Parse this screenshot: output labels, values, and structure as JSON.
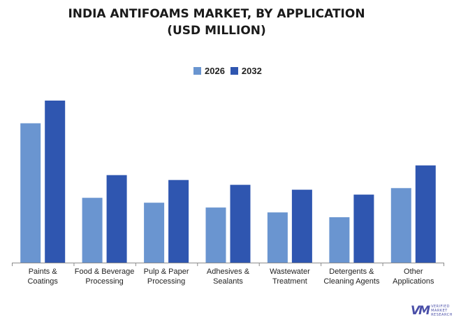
{
  "chart_data": {
    "type": "bar",
    "title_line1": "INDIA ANTIFOAMS MARKET, BY APPLICATION",
    "title_line2": "(USD MILLION)",
    "xlabel": "",
    "ylabel": "",
    "legend_placement": "top-center",
    "grid": false,
    "y_axis_visible": false,
    "ylim": [
      0,
      100
    ],
    "categories": [
      [
        "Paints &",
        "Coatings"
      ],
      [
        "Food & Beverage",
        "Processing"
      ],
      [
        "Pulp & Paper",
        "Processing"
      ],
      [
        "Adhesives &",
        "Sealants"
      ],
      [
        "Wastewater",
        "Treatment"
      ],
      [
        "Detergents &",
        "Cleaning Agents"
      ],
      [
        "Other",
        "Applications"
      ]
    ],
    "series": [
      {
        "name": "2026",
        "color": "#6a95d0",
        "values": [
          86,
          40,
          37,
          34,
          31,
          28,
          46
        ]
      },
      {
        "name": "2032",
        "color": "#2f56b0",
        "values": [
          100,
          54,
          51,
          48,
          45,
          42,
          60
        ]
      }
    ]
  },
  "logo": {
    "mark": "VM",
    "line1": "VERIFIED",
    "line2": "MARKET",
    "line3": "RESEARCH"
  }
}
